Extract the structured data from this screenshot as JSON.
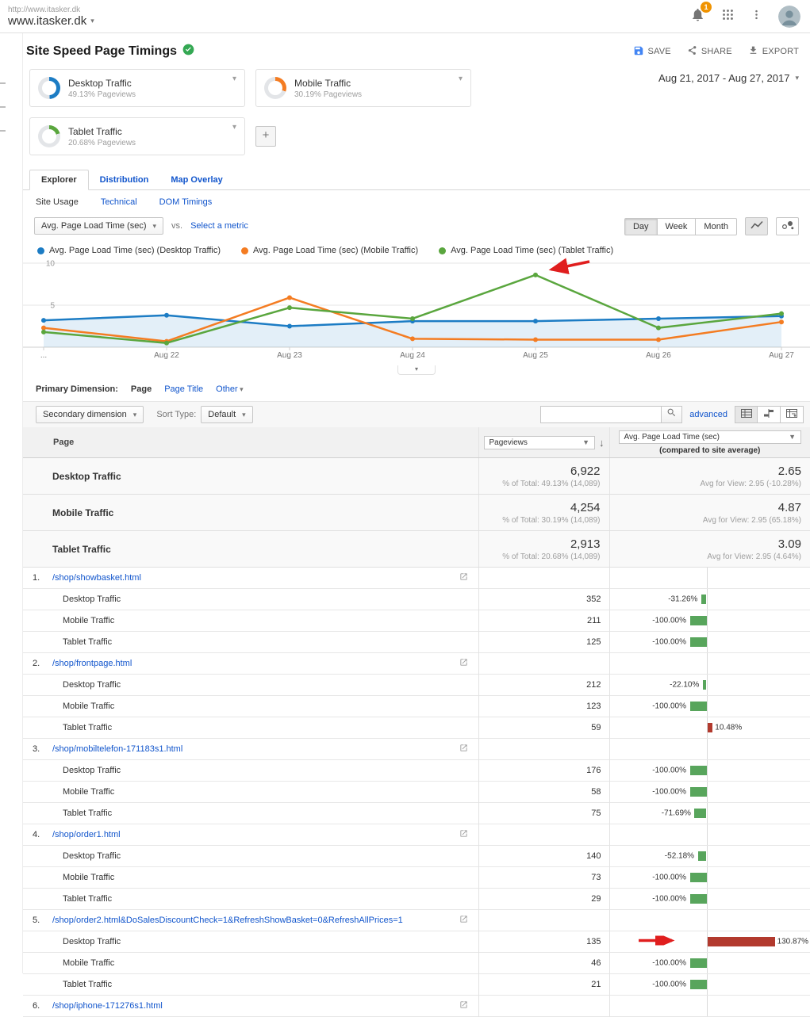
{
  "topbar": {
    "url": "http://www.itasker.dk",
    "account": "www.itasker.dk",
    "notification_count": "1"
  },
  "header": {
    "title": "Site Speed Page Timings",
    "save": "SAVE",
    "share": "SHARE",
    "export": "EXPORT"
  },
  "date_range": "Aug 21, 2017 - Aug 27, 2017",
  "segments": [
    {
      "name": "Desktop Traffic",
      "detail": "49.13% Pageviews",
      "pct": 49.13,
      "color": "#1c7cc4"
    },
    {
      "name": "Mobile Traffic",
      "detail": "30.19% Pageviews",
      "pct": 30.19,
      "color": "#f47c22"
    },
    {
      "name": "Tablet Traffic",
      "detail": "20.68% Pageviews",
      "pct": 20.68,
      "color": "#5aa63e"
    }
  ],
  "tabs": [
    {
      "label": "Explorer",
      "active": true
    },
    {
      "label": "Distribution",
      "active": false
    },
    {
      "label": "Map Overlay",
      "active": false
    }
  ],
  "subtabs": [
    {
      "label": "Site Usage",
      "active": true
    },
    {
      "label": "Technical",
      "active": false
    },
    {
      "label": "DOM Timings",
      "active": false
    }
  ],
  "metric_bar": {
    "metric": "Avg. Page Load Time (sec)",
    "vs_label": "vs.",
    "select_metric": "Select a metric",
    "granularities": [
      "Day",
      "Week",
      "Month"
    ],
    "active_granularity": "Day"
  },
  "chart_data": {
    "type": "line",
    "x": [
      "...",
      "Aug 22",
      "Aug 23",
      "Aug 24",
      "Aug 25",
      "Aug 26",
      "Aug 27"
    ],
    "ylim": [
      0,
      10
    ],
    "yticks": [
      5,
      10
    ],
    "legend_position": "top",
    "series": [
      {
        "name": "Avg. Page Load Time (sec) (Desktop Traffic)",
        "color": "#1c7cc4",
        "fill": true,
        "values": [
          3.2,
          3.8,
          2.5,
          3.1,
          3.1,
          3.4,
          3.7
        ]
      },
      {
        "name": "Avg. Page Load Time (sec) (Mobile Traffic)",
        "color": "#f47c22",
        "fill": false,
        "values": [
          2.3,
          0.7,
          5.9,
          1.0,
          0.9,
          0.9,
          3.0
        ]
      },
      {
        "name": "Avg. Page Load Time (sec) (Tablet Traffic)",
        "color": "#5aa63e",
        "fill": false,
        "values": [
          1.8,
          0.5,
          4.7,
          3.4,
          8.6,
          2.3,
          4.0
        ]
      }
    ],
    "annotation": "red arrow pointing at Tablet Traffic peak on Aug 25"
  },
  "primary_dimension": {
    "label": "Primary Dimension:",
    "options": [
      {
        "label": "Page",
        "active": true,
        "caret": false
      },
      {
        "label": "Page Title",
        "active": false,
        "caret": false
      },
      {
        "label": "Other",
        "active": false,
        "caret": true
      }
    ]
  },
  "table_toolbar": {
    "secondary_dimension": "Secondary dimension",
    "sort_type_label": "Sort Type:",
    "sort_type_value": "Default",
    "advanced": "advanced"
  },
  "table": {
    "columns": {
      "page": "Page",
      "pageviews": "Pageviews",
      "metric": "Avg. Page Load Time (sec)",
      "metric_note": "(compared to site average)"
    },
    "summary_rows": [
      {
        "name": "Desktop Traffic",
        "pageviews": "6,922",
        "pageviews_note": "% of Total: 49.13% (14,089)",
        "metric": "2.65",
        "metric_note": "Avg for View: 2.95 (-10.28%)"
      },
      {
        "name": "Mobile Traffic",
        "pageviews": "4,254",
        "pageviews_note": "% of Total: 30.19% (14,089)",
        "metric": "4.87",
        "metric_note": "Avg for View: 2.95 (65.18%)"
      },
      {
        "name": "Tablet Traffic",
        "pageviews": "2,913",
        "pageviews_note": "% of Total: 20.68% (14,089)",
        "metric": "3.09",
        "metric_note": "Avg for View: 2.95 (4.64%)"
      }
    ],
    "rows": [
      {
        "index": "1.",
        "page": "/shop/showbasket.html",
        "segments": [
          {
            "name": "Desktop Traffic",
            "pageviews": "352",
            "delta": "-31.26%",
            "delta_pct": -31.26
          },
          {
            "name": "Mobile Traffic",
            "pageviews": "211",
            "delta": "-100.00%",
            "delta_pct": -100
          },
          {
            "name": "Tablet Traffic",
            "pageviews": "125",
            "delta": "-100.00%",
            "delta_pct": -100
          }
        ]
      },
      {
        "index": "2.",
        "page": "/shop/frontpage.html",
        "segments": [
          {
            "name": "Desktop Traffic",
            "pageviews": "212",
            "delta": "-22.10%",
            "delta_pct": -22.1
          },
          {
            "name": "Mobile Traffic",
            "pageviews": "123",
            "delta": "-100.00%",
            "delta_pct": -100
          },
          {
            "name": "Tablet Traffic",
            "pageviews": "59",
            "delta": "10.48%",
            "delta_pct": 10.48
          }
        ]
      },
      {
        "index": "3.",
        "page": "/shop/mobiltelefon-171183s1.html",
        "segments": [
          {
            "name": "Desktop Traffic",
            "pageviews": "176",
            "delta": "-100.00%",
            "delta_pct": -100
          },
          {
            "name": "Mobile Traffic",
            "pageviews": "58",
            "delta": "-100.00%",
            "delta_pct": -100
          },
          {
            "name": "Tablet Traffic",
            "pageviews": "75",
            "delta": "-71.69%",
            "delta_pct": -71.69
          }
        ]
      },
      {
        "index": "4.",
        "page": "/shop/order1.html",
        "segments": [
          {
            "name": "Desktop Traffic",
            "pageviews": "140",
            "delta": "-52.18%",
            "delta_pct": -52.18
          },
          {
            "name": "Mobile Traffic",
            "pageviews": "73",
            "delta": "-100.00%",
            "delta_pct": -100
          },
          {
            "name": "Tablet Traffic",
            "pageviews": "29",
            "delta": "-100.00%",
            "delta_pct": -100
          }
        ]
      },
      {
        "index": "5.",
        "page": "/shop/order2.html&DoSalesDiscountCheck=1&RefreshShowBasket=0&RefreshAllPrices=1",
        "segments": [
          {
            "name": "Desktop Traffic",
            "pageviews": "135",
            "delta": "130.87%",
            "delta_pct": 130.87,
            "arrow": true
          },
          {
            "name": "Mobile Traffic",
            "pageviews": "46",
            "delta": "-100.00%",
            "delta_pct": -100
          },
          {
            "name": "Tablet Traffic",
            "pageviews": "21",
            "delta": "-100.00%",
            "delta_pct": -100
          }
        ]
      },
      {
        "index": "6.",
        "page": "/shop/iphone-171276s1.html",
        "segments": []
      }
    ]
  },
  "colors": {
    "desktop": "#1c7cc4",
    "mobile": "#f47c22",
    "tablet": "#5aa63e",
    "positive_bar": "#b23a2e",
    "negative_bar": "#58a55c",
    "link": "#1155cc",
    "annotation_arrow": "#e01e1e"
  }
}
